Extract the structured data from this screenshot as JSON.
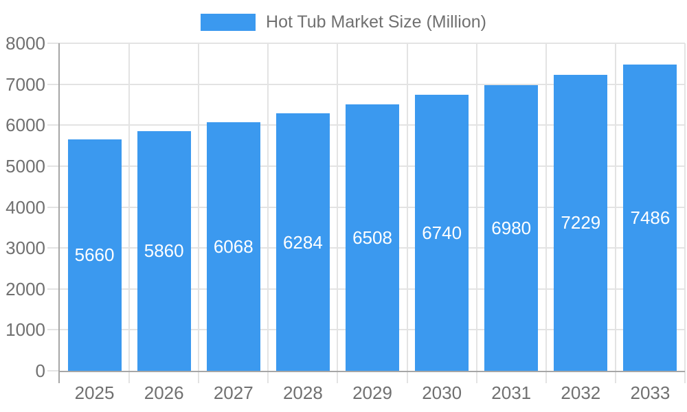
{
  "legend": {
    "label": "Hot Tub Market Size (Million)"
  },
  "chart_data": {
    "type": "bar",
    "title": "Hot Tub Market Size (Million)",
    "categories": [
      "2025",
      "2026",
      "2027",
      "2028",
      "2029",
      "2030",
      "2031",
      "2032",
      "2033"
    ],
    "values": [
      5660,
      5860,
      6068,
      6284,
      6508,
      6740,
      6980,
      7229,
      7486
    ],
    "bar_value_labels": [
      "5660",
      "5860",
      "6068",
      "6284",
      "6508",
      "6740",
      "6980",
      "7229",
      "7486"
    ],
    "xlabel": "",
    "ylabel": "",
    "ylim": [
      0,
      8000
    ],
    "y_ticks": [
      0,
      1000,
      2000,
      3000,
      4000,
      5000,
      6000,
      7000,
      8000
    ],
    "y_tick_labels": [
      "0",
      "1000",
      "2000",
      "3000",
      "4000",
      "5000",
      "6000",
      "7000",
      "8000"
    ],
    "grid": true,
    "legend_position": "top"
  },
  "colors": {
    "bar": "#3b99ef",
    "bar_label_text": "#ffffff",
    "axis_text": "#707070",
    "axis_line": "#a6a6a6",
    "grid_line": "#e3e3e3",
    "background": "#ffffff"
  }
}
